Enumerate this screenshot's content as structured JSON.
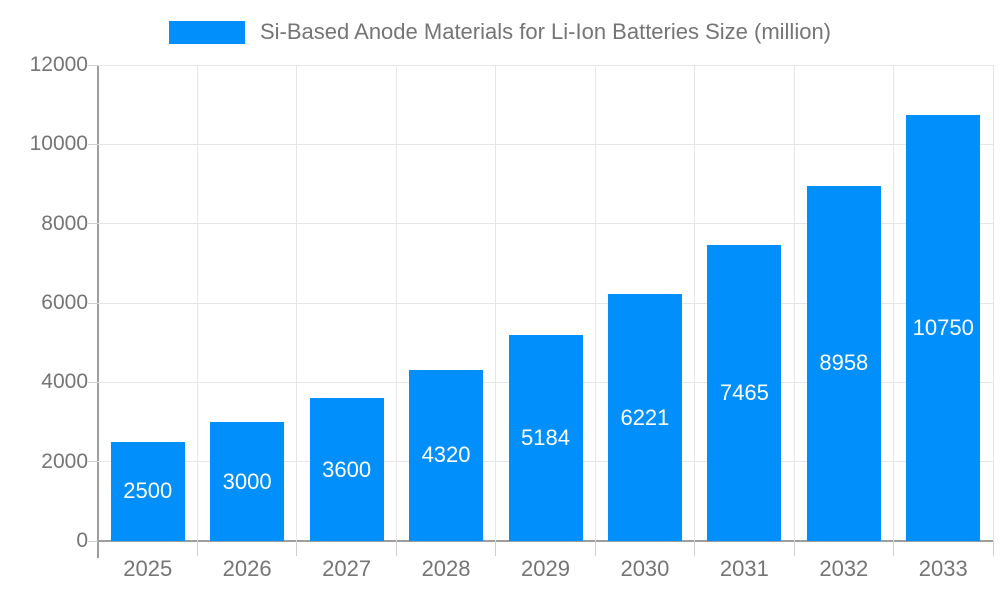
{
  "legend": {
    "label": "Si-Based Anode Materials for Li-Ion Batteries Size (million)"
  },
  "colors": {
    "bar": "#008FFB",
    "grid": "#e6e6e6",
    "axis": "#9e9e9e",
    "tick": "#cfcfcf",
    "label": "#757575",
    "value_label": "#ffffff"
  },
  "chart_data": {
    "type": "bar",
    "title": "Si-Based Anode Materials for Li-Ion Batteries Size (million)",
    "categories": [
      "2025",
      "2026",
      "2027",
      "2028",
      "2029",
      "2030",
      "2031",
      "2032",
      "2033"
    ],
    "values": [
      2500,
      3000,
      3600,
      4320,
      5184,
      6221,
      7465,
      8958,
      10750
    ],
    "xlabel": "",
    "ylabel": "",
    "ylim": [
      0,
      12000
    ],
    "yticks": [
      0,
      2000,
      4000,
      6000,
      8000,
      10000,
      12000
    ],
    "grid": true,
    "legend_position": "top",
    "value_labels": "white, centered inside bars",
    "bar_width_fraction": 0.74
  }
}
